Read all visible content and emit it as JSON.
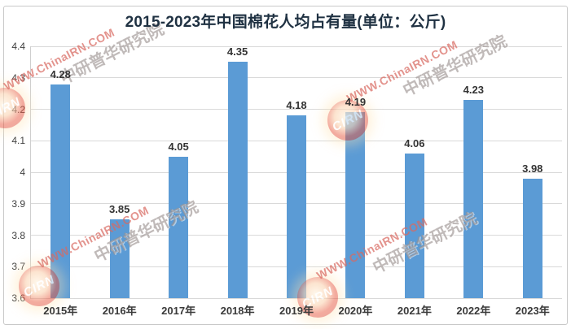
{
  "page": {
    "background": "#FFFFFF",
    "frame_border_color": "#C9C9C9"
  },
  "chart_data": {
    "type": "bar",
    "title": "2015-2023年中国棉花人均占有量(单位：公斤)",
    "xlabel": "",
    "ylabel": "",
    "categories": [
      "2015年",
      "2016年",
      "2017年",
      "2018年",
      "2019年",
      "2020年",
      "2021年",
      "2022年",
      "2023年"
    ],
    "values": [
      4.28,
      3.85,
      4.05,
      4.35,
      4.18,
      4.19,
      4.06,
      4.23,
      3.98
    ],
    "value_labels": [
      "4.28",
      "3.85",
      "4.05",
      "4.35",
      "4.18",
      "4.19",
      "4.06",
      "4.23",
      "3.98"
    ],
    "ylim": [
      3.6,
      4.4
    ],
    "ytick_values": [
      4.4,
      4.3,
      4.2,
      4.1,
      4.0,
      3.9,
      3.8,
      3.7,
      3.6
    ],
    "ytick_labels": [
      "4.4",
      "4.3",
      "4.2",
      "4.1",
      "4",
      "3.9",
      "3.8",
      "3.7",
      "3.6"
    ],
    "grid": true,
    "legend": null,
    "bar_color": "#5B9BD5",
    "grid_color": "#D9D9D9",
    "axis_color": "#CFCFCF",
    "title_color": "#1F3142",
    "label_color": "#333333"
  },
  "watermark": {
    "url_text": "WWW.ChinaIRN.COM",
    "brand_text": "中研普华研究院",
    "logo_text": "CIRN",
    "url_color": "#D86A61",
    "brand_color": "#99908E",
    "logo_ring_color": "#E05844"
  }
}
